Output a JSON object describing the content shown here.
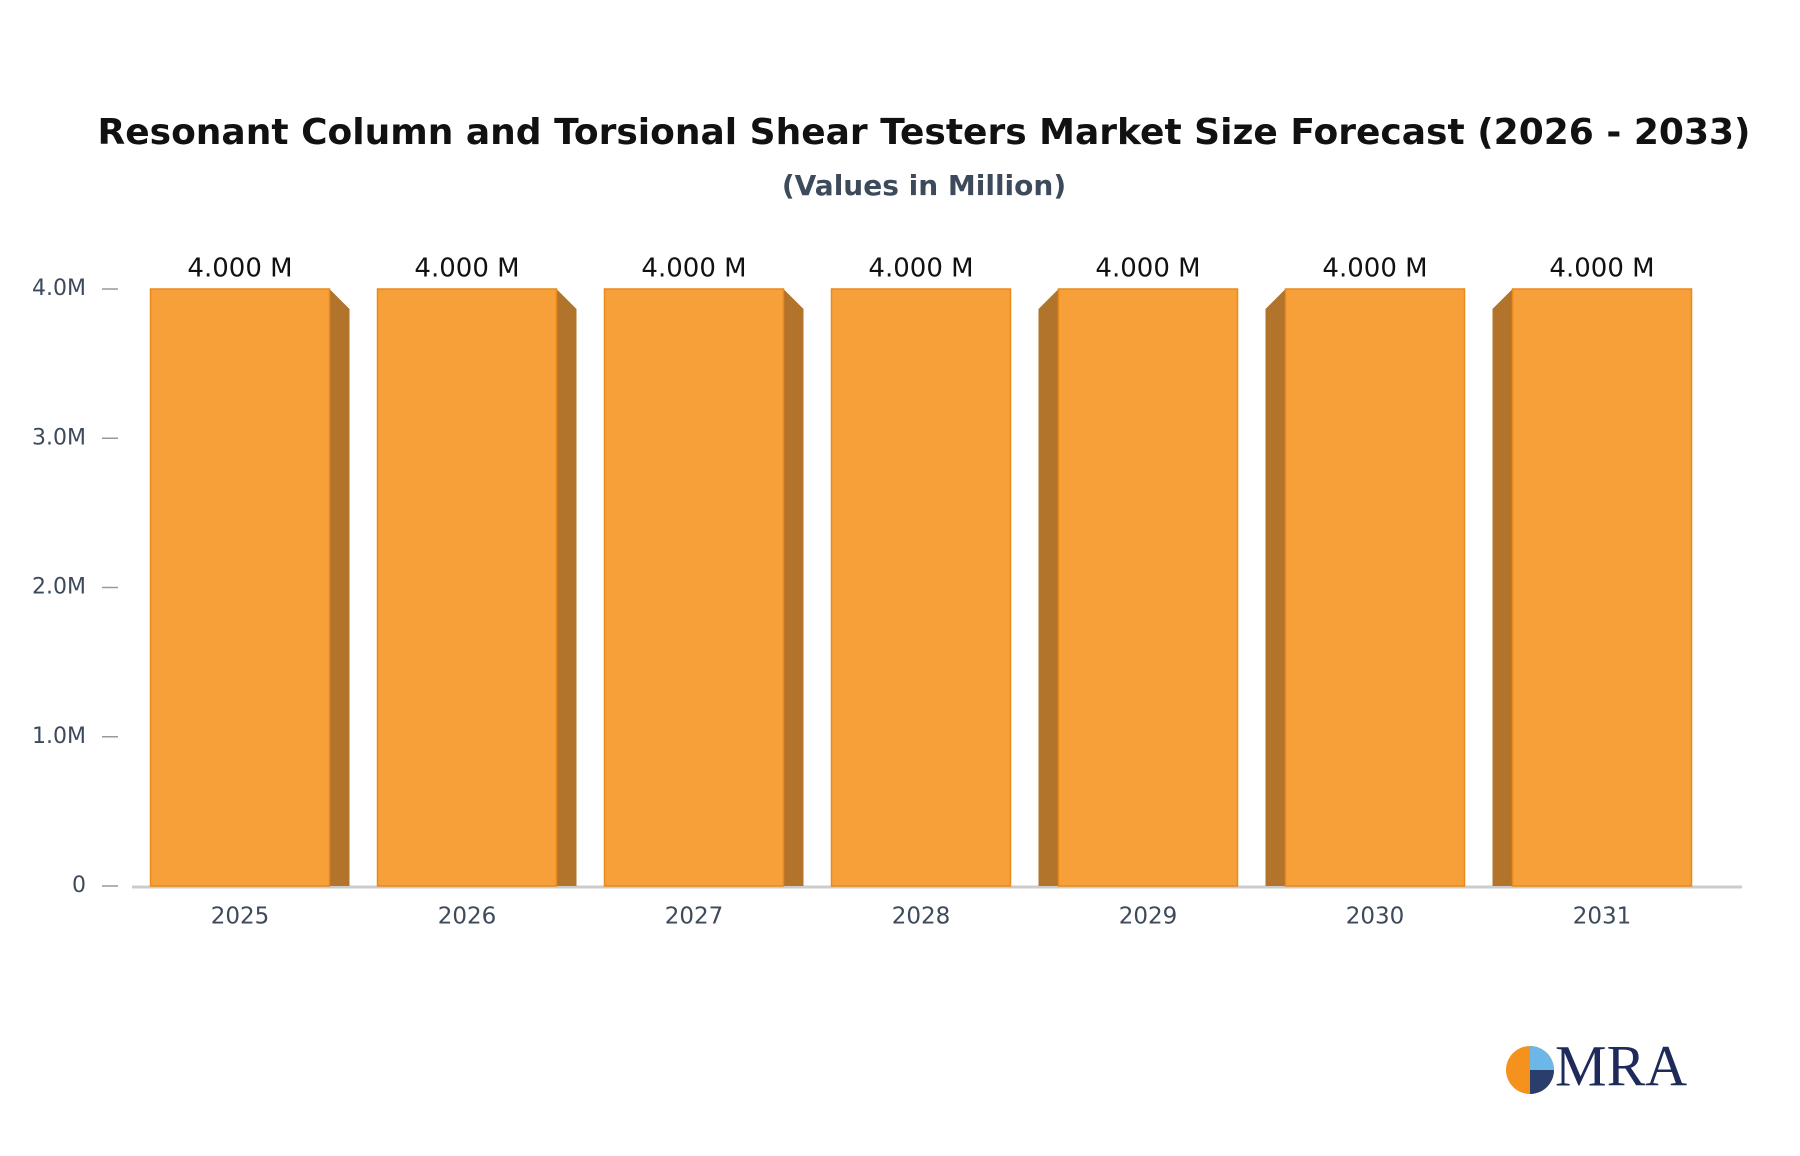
{
  "chart_data": {
    "type": "bar",
    "title": "Resonant Column and Torsional Shear Testers Market Size Forecast (2026 - 2033)",
    "subtitle": "(Values in Million)",
    "categories": [
      "2025",
      "2026",
      "2027",
      "2028",
      "2029",
      "2030",
      "2031"
    ],
    "values": [
      4,
      4,
      4,
      4,
      4,
      4,
      4
    ],
    "value_labels": [
      "4.000 M",
      "4.000 M",
      "4.000 M",
      "4.000 M",
      "4.000 M",
      "4.000 M",
      "4.000 M"
    ],
    "color": "#f7a03a",
    "ylim": [
      0,
      4
    ],
    "yticks": [
      0,
      {
        "value": 1,
        "label": "1.0M"
      },
      {
        "value": 2,
        "label": "2.0M"
      },
      {
        "value": 3,
        "label": "3.0M"
      },
      {
        "value": 4,
        "label": "4.0M"
      }
    ],
    "grid": false
  },
  "logo": "MRA"
}
